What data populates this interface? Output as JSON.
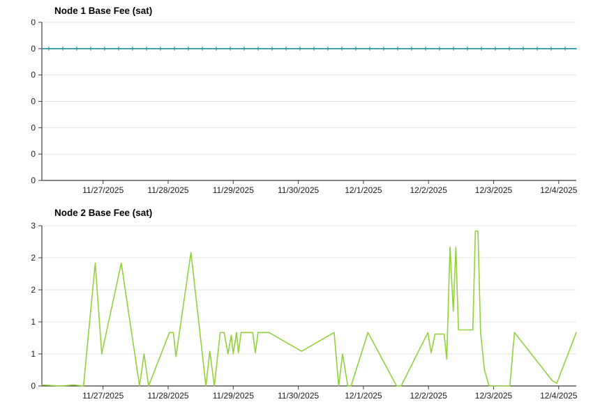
{
  "style": {
    "background": "#ffffff",
    "grid_color": "#e3e3e3",
    "axis_color": "#3c3c3c",
    "label_color": "#1a1a1a",
    "node1_line_color": "#1a8a9f",
    "node2_line_color": "#92d13a"
  },
  "chart_data": [
    {
      "type": "line",
      "title": "Node 1 Base Fee (sat)",
      "xlabel": "",
      "ylabel": "",
      "x_unit": "days_since_2025-11-26",
      "xlim": [
        0.06,
        8.27
      ],
      "ylim": [
        0,
        1.2e-06
      ],
      "grid": "horizontal",
      "legend": "none",
      "xticks": [
        1,
        2,
        3,
        4,
        5,
        6,
        7,
        8
      ],
      "xtick_labels": [
        "11/27/2025",
        "11/28/2025",
        "11/29/2025",
        "11/30/2025",
        "12/1/2025",
        "12/2/2025",
        "12/3/2025",
        "12/4/2025"
      ],
      "yticks": [
        0,
        2e-07,
        4e-07,
        6e-07,
        8e-07,
        1e-06,
        1.2e-06
      ],
      "ytick_labels": [
        "0",
        "0",
        "0",
        "0",
        "0",
        "0",
        "0"
      ],
      "series": [
        {
          "name": "node1-base-fee",
          "color": "#1a8a9f",
          "markers": "tick",
          "points": [
            [
              0.06,
              1e-06
            ],
            [
              8.27,
              1e-06
            ]
          ]
        }
      ]
    },
    {
      "type": "line",
      "title": "Node 2 Base Fee (sat)",
      "xlabel": "",
      "ylabel": "",
      "x_unit": "days_since_2025-11-26",
      "xlim": [
        0.06,
        8.27
      ],
      "ylim": [
        0,
        3
      ],
      "grid": "horizontal",
      "legend": "none",
      "xticks": [
        1,
        2,
        3,
        4,
        5,
        6,
        7,
        8
      ],
      "xtick_labels": [
        "11/27/2025",
        "11/28/2025",
        "11/29/2025",
        "11/30/2025",
        "12/1/2025",
        "12/2/2025",
        "12/3/2025",
        "12/4/2025"
      ],
      "yticks": [
        0,
        0.6,
        1.2,
        1.8,
        2.4,
        3.0
      ],
      "ytick_labels": [
        "0",
        "1",
        "1",
        "2",
        "2",
        "3"
      ],
      "series": [
        {
          "name": "node2-base-fee",
          "color": "#92d13a",
          "markers": "none",
          "points": [
            [
              0.06,
              0.02
            ],
            [
              0.35,
              0
            ],
            [
              0.55,
              0.02
            ],
            [
              0.7,
              0
            ],
            [
              0.88,
              2.3
            ],
            [
              0.98,
              0.6
            ],
            [
              1.28,
              2.3
            ],
            [
              1.56,
              0
            ],
            [
              1.63,
              0.6
            ],
            [
              1.7,
              0
            ],
            [
              2.02,
              1.0
            ],
            [
              2.08,
              1.0
            ],
            [
              2.12,
              0.55
            ],
            [
              2.35,
              2.5
            ],
            [
              2.58,
              0
            ],
            [
              2.64,
              0.65
            ],
            [
              2.71,
              0
            ],
            [
              2.8,
              1.0
            ],
            [
              2.86,
              1.0
            ],
            [
              2.92,
              0.6
            ],
            [
              2.97,
              0.95
            ],
            [
              3.0,
              0.6
            ],
            [
              3.05,
              1.0
            ],
            [
              3.08,
              0.62
            ],
            [
              3.12,
              1.0
            ],
            [
              3.3,
              1.0
            ],
            [
              3.34,
              0.62
            ],
            [
              3.38,
              1.0
            ],
            [
              3.55,
              1.0
            ],
            [
              4.05,
              0.65
            ],
            [
              4.55,
              1.0
            ],
            [
              4.62,
              0
            ],
            [
              4.68,
              0.6
            ],
            [
              4.76,
              0
            ],
            [
              4.81,
              0
            ],
            [
              5.07,
              1.0
            ],
            [
              5.51,
              0
            ],
            [
              5.58,
              0
            ],
            [
              5.99,
              1.0
            ],
            [
              6.04,
              0.62
            ],
            [
              6.1,
              0.97
            ],
            [
              6.24,
              0.97
            ],
            [
              6.28,
              0.5
            ],
            [
              6.33,
              2.6
            ],
            [
              6.38,
              1.4
            ],
            [
              6.42,
              2.6
            ],
            [
              6.46,
              1.05
            ],
            [
              6.68,
              1.05
            ],
            [
              6.72,
              2.9
            ],
            [
              6.76,
              2.9
            ],
            [
              6.8,
              1.0
            ],
            [
              6.86,
              0.3
            ],
            [
              6.93,
              0
            ],
            [
              7.25,
              0
            ],
            [
              7.32,
              1.0
            ],
            [
              7.9,
              0.1
            ],
            [
              7.97,
              0.05
            ],
            [
              8.27,
              1.0
            ]
          ]
        }
      ]
    }
  ]
}
